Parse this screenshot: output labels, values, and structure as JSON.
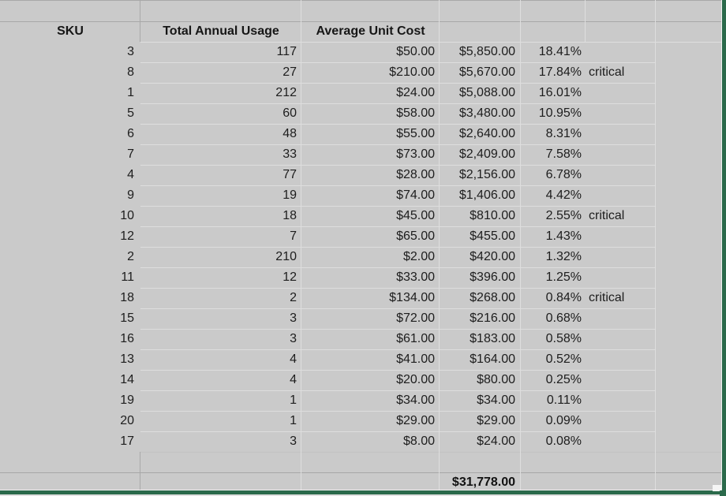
{
  "sheet": {
    "background_color": "#cacaca",
    "gridline_dark_color": "#a8a8a8",
    "gridline_light_color": "#dedede",
    "selection_border_color": "#2b6a4b",
    "text_color": "#1d1d1d"
  },
  "table": {
    "headers": {
      "sku": "SKU",
      "usage": "Total Annual Usage",
      "unit_cost": "Average Unit Cost"
    },
    "rows": [
      {
        "sku": "3",
        "usage": "117",
        "unit_cost": "$50.00",
        "annual_value": "$5,850.00",
        "pct": "18.41%",
        "note": ""
      },
      {
        "sku": "8",
        "usage": "27",
        "unit_cost": "$210.00",
        "annual_value": "$5,670.00",
        "pct": "17.84%",
        "note": "critical"
      },
      {
        "sku": "1",
        "usage": "212",
        "unit_cost": "$24.00",
        "annual_value": "$5,088.00",
        "pct": "16.01%",
        "note": ""
      },
      {
        "sku": "5",
        "usage": "60",
        "unit_cost": "$58.00",
        "annual_value": "$3,480.00",
        "pct": "10.95%",
        "note": ""
      },
      {
        "sku": "6",
        "usage": "48",
        "unit_cost": "$55.00",
        "annual_value": "$2,640.00",
        "pct": "8.31%",
        "note": ""
      },
      {
        "sku": "7",
        "usage": "33",
        "unit_cost": "$73.00",
        "annual_value": "$2,409.00",
        "pct": "7.58%",
        "note": ""
      },
      {
        "sku": "4",
        "usage": "77",
        "unit_cost": "$28.00",
        "annual_value": "$2,156.00",
        "pct": "6.78%",
        "note": ""
      },
      {
        "sku": "9",
        "usage": "19",
        "unit_cost": "$74.00",
        "annual_value": "$1,406.00",
        "pct": "4.42%",
        "note": ""
      },
      {
        "sku": "10",
        "usage": "18",
        "unit_cost": "$45.00",
        "annual_value": "$810.00",
        "pct": "2.55%",
        "note": "critical"
      },
      {
        "sku": "12",
        "usage": "7",
        "unit_cost": "$65.00",
        "annual_value": "$455.00",
        "pct": "1.43%",
        "note": ""
      },
      {
        "sku": "2",
        "usage": "210",
        "unit_cost": "$2.00",
        "annual_value": "$420.00",
        "pct": "1.32%",
        "note": ""
      },
      {
        "sku": "11",
        "usage": "12",
        "unit_cost": "$33.00",
        "annual_value": "$396.00",
        "pct": "1.25%",
        "note": ""
      },
      {
        "sku": "18",
        "usage": "2",
        "unit_cost": "$134.00",
        "annual_value": "$268.00",
        "pct": "0.84%",
        "note": "critical"
      },
      {
        "sku": "15",
        "usage": "3",
        "unit_cost": "$72.00",
        "annual_value": "$216.00",
        "pct": "0.68%",
        "note": ""
      },
      {
        "sku": "16",
        "usage": "3",
        "unit_cost": "$61.00",
        "annual_value": "$183.00",
        "pct": "0.58%",
        "note": ""
      },
      {
        "sku": "13",
        "usage": "4",
        "unit_cost": "$41.00",
        "annual_value": "$164.00",
        "pct": "0.52%",
        "note": ""
      },
      {
        "sku": "14",
        "usage": "4",
        "unit_cost": "$20.00",
        "annual_value": "$80.00",
        "pct": "0.25%",
        "note": ""
      },
      {
        "sku": "19",
        "usage": "1",
        "unit_cost": "$34.00",
        "annual_value": "$34.00",
        "pct": "0.11%",
        "note": ""
      },
      {
        "sku": "20",
        "usage": "1",
        "unit_cost": "$29.00",
        "annual_value": "$29.00",
        "pct": "0.09%",
        "note": ""
      },
      {
        "sku": "17",
        "usage": "3",
        "unit_cost": "$8.00",
        "annual_value": "$24.00",
        "pct": "0.08%",
        "note": ""
      }
    ],
    "total_annual_value": "$31,778.00"
  }
}
